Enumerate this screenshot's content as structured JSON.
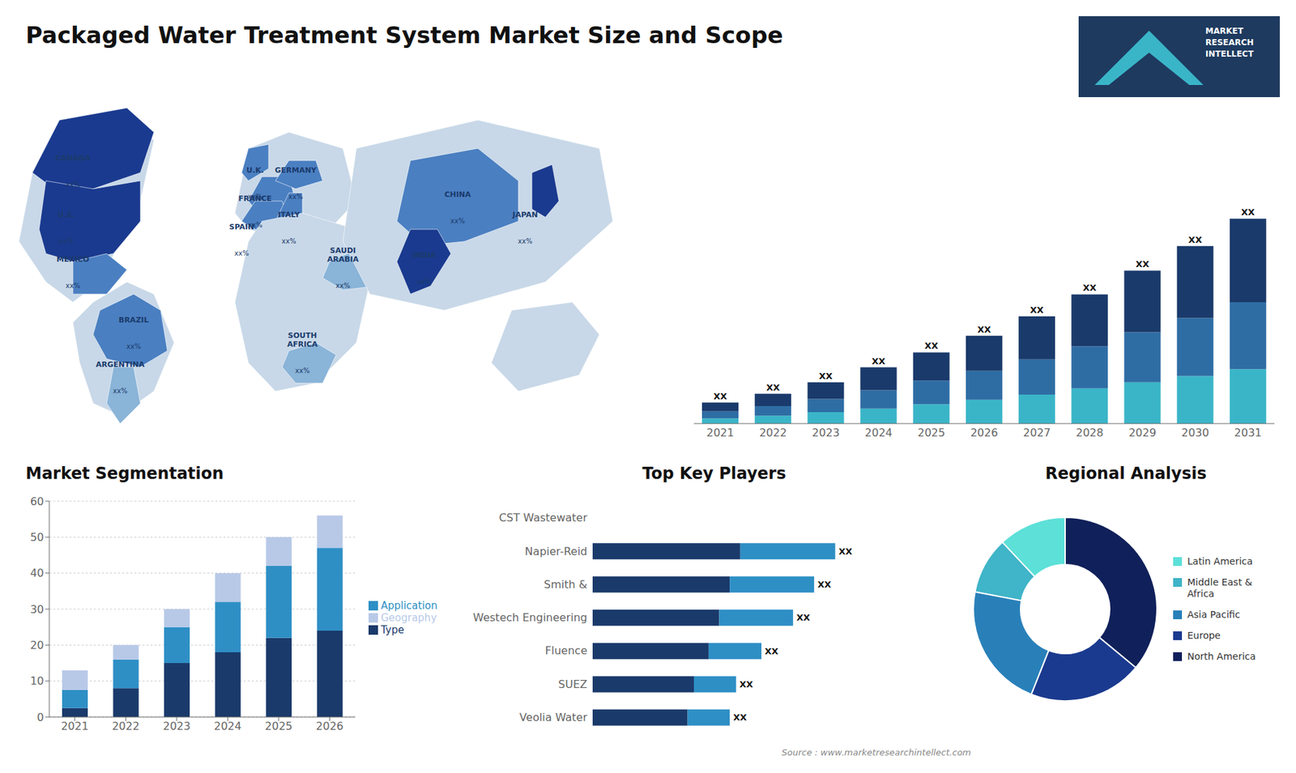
{
  "chart_data": [
    {
      "type": "bar",
      "title": "Packaged Water Treatment System Market Size and Scope",
      "categories": [
        "2021",
        "2022",
        "2023",
        "2024",
        "2025",
        "2026",
        "2027",
        "2028",
        "2029",
        "2030",
        "2031"
      ],
      "stacked": true,
      "series": [
        {
          "color": "#3ab5c8",
          "values": [
            0.6,
            0.9,
            1.3,
            1.7,
            2.2,
            2.7,
            3.3,
            4.0,
            4.7,
            5.4,
            6.2
          ]
        },
        {
          "color": "#2e6da4",
          "values": [
            0.8,
            1.1,
            1.5,
            2.1,
            2.7,
            3.3,
            4.0,
            4.8,
            5.7,
            6.6,
            7.6
          ]
        },
        {
          "color": "#1a3a6b",
          "values": [
            1.0,
            1.4,
            1.9,
            2.6,
            3.2,
            4.0,
            4.9,
            5.9,
            7.0,
            8.2,
            9.5
          ],
          "value_labels": [
            "XX",
            "XX",
            "XX",
            "XX",
            "XX",
            "XX",
            "XX",
            "XX",
            "XX",
            "XX",
            "XX"
          ]
        }
      ],
      "ylim": [
        0,
        31.455
      ],
      "tick_labels": "x",
      "grid": false,
      "annotations": [
        "MARKET\nRESEARCH\nINTELLECT",
        "Source : www.marketresearchintellect.com"
      ]
    },
    {
      "type": "map",
      "categories": [
        "CANADA",
        "U.S.",
        "MEXICO",
        "BRAZIL",
        "ARGENTINA",
        "U.K.",
        "FRANCE",
        "SPAIN",
        "GERMANY",
        "ITALY",
        "SAUDI\nARABIA",
        "SOUTH\nAFRICA",
        "CHINA",
        "INDIA",
        "JAPAN"
      ],
      "annotations": [
        "xx%",
        "xx%",
        "xx%",
        "xx%",
        "xx%",
        "xx%",
        "xx%",
        "xx%",
        "xx%",
        "xx%",
        "xx%",
        "xx%",
        "xx%",
        "xx%",
        "xx%"
      ]
    },
    {
      "type": "bar",
      "title": "Market Segmentation",
      "categories": [
        "2021",
        "2022",
        "2023",
        "2024",
        "2025",
        "2026"
      ],
      "stacked": true,
      "series": [
        {
          "name": "Type",
          "color": "#1a3a6b",
          "values": [
            2.5,
            8.0,
            15.0,
            18.0,
            22.0,
            24.0
          ]
        },
        {
          "name": "Application",
          "color": "#2e8fc5",
          "values": [
            5.0,
            8.0,
            10.0,
            14.0,
            20.0,
            23.0
          ]
        },
        {
          "name": "Geography",
          "color": "#b8c9e8",
          "values": [
            5.5,
            4.0,
            5.0,
            8.0,
            8.0,
            9.0
          ]
        }
      ],
      "ylim": [
        0,
        60
      ],
      "yticks": [
        0,
        10,
        20,
        30,
        40,
        50,
        60
      ],
      "grid": true,
      "legend": "right"
    },
    {
      "type": "bar",
      "title": "Top Key Players",
      "orientation": "horizontal",
      "categories": [
        "CST Wastewater",
        "Napier-Reid",
        "Smith &",
        "Westech Engineering",
        "Fluence",
        "SUEZ",
        "Veolia Water"
      ],
      "stacked": true,
      "series": [
        {
          "color": "#1a3a6b",
          "values": [
            0,
            7.0,
            6.5,
            6.0,
            5.5,
            4.8,
            4.5
          ]
        },
        {
          "color": "#2e8fc5",
          "values": [
            0,
            4.5,
            4.0,
            3.5,
            2.5,
            2.0,
            2.0
          ],
          "value_labels": [
            null,
            "XX",
            "XX",
            "XX",
            "XX",
            "XX",
            "XX"
          ]
        }
      ],
      "xlim": [
        0,
        16
      ],
      "tick_labels": "y",
      "grid": false
    },
    {
      "type": "pie",
      "title": "Regional Analysis",
      "categories": [
        "Latin America",
        "Middle East &\nAfrica",
        "Asia Pacific",
        "Europe",
        "North America"
      ],
      "values": [
        12,
        10,
        22,
        20,
        36
      ],
      "colors": [
        "#5ce0d8",
        "#40b4c8",
        "#2980b9",
        "#1a3a8f",
        "#10205a"
      ],
      "legend": "right"
    }
  ]
}
